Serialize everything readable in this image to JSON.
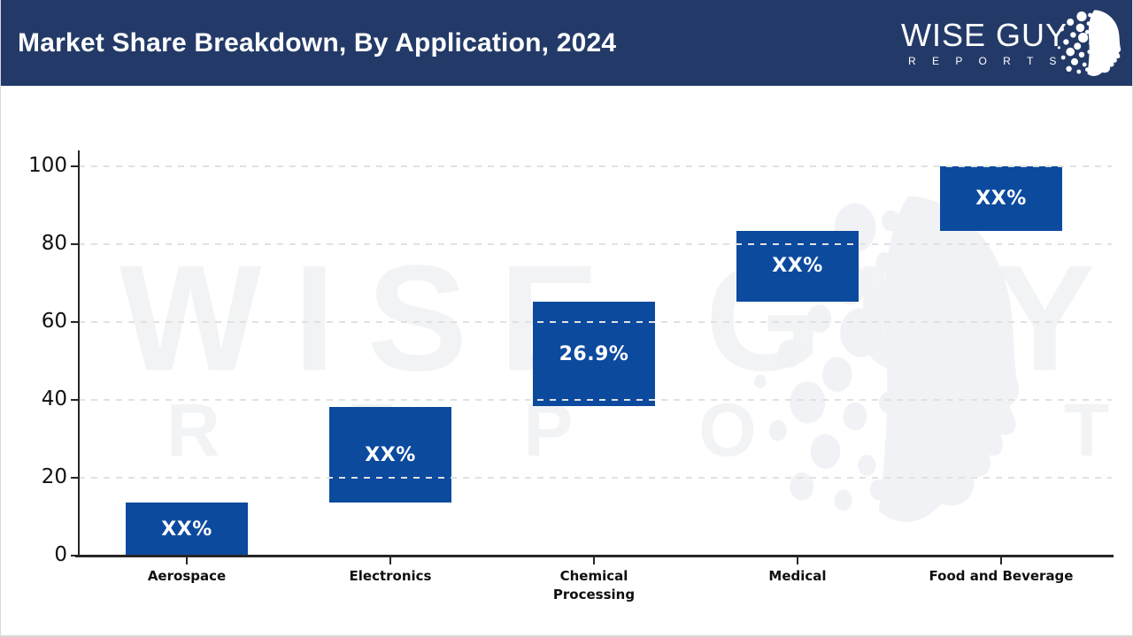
{
  "header": {
    "title": "Market Share Breakdown, By Application, 2024",
    "background_color": "#233a68",
    "logo": {
      "line1": "WISE GUY",
      "line2": "R E P O R T S"
    }
  },
  "watermark": {
    "line1": "WISE GUY",
    "line2": "R E P O R T S"
  },
  "chart_data": {
    "type": "bar",
    "variant": "floating-waterfall",
    "title": "Market Share Breakdown, By Application, 2024",
    "xlabel": "",
    "ylabel": "",
    "ylim": [
      0,
      100
    ],
    "yticks": [
      0,
      20,
      40,
      60,
      80,
      100
    ],
    "grid": {
      "horizontal": true,
      "style": "dashed",
      "color": "#e1e1e1",
      "drawn_above_bars": true
    },
    "bar_color": "#0c4a9e",
    "value_label_color": "#ffffff",
    "categories": [
      "Aerospace",
      "Electronics",
      "Chemical\nProcessing",
      "Medical",
      "Food and Beverage"
    ],
    "segments": [
      {
        "category": "Aerospace",
        "start": 0,
        "end": 13.6,
        "value_label": "XX%"
      },
      {
        "category": "Electronics",
        "start": 13.6,
        "end": 38.1,
        "value_label": "XX%"
      },
      {
        "category": "Chemical Processing",
        "start": 38.3,
        "end": 65.2,
        "value_label": "26.9%"
      },
      {
        "category": "Medical",
        "start": 65.3,
        "end": 83.4,
        "value_label": "XX%"
      },
      {
        "category": "Food and Beverage",
        "start": 83.5,
        "end": 100,
        "value_label": "XX%"
      }
    ]
  }
}
